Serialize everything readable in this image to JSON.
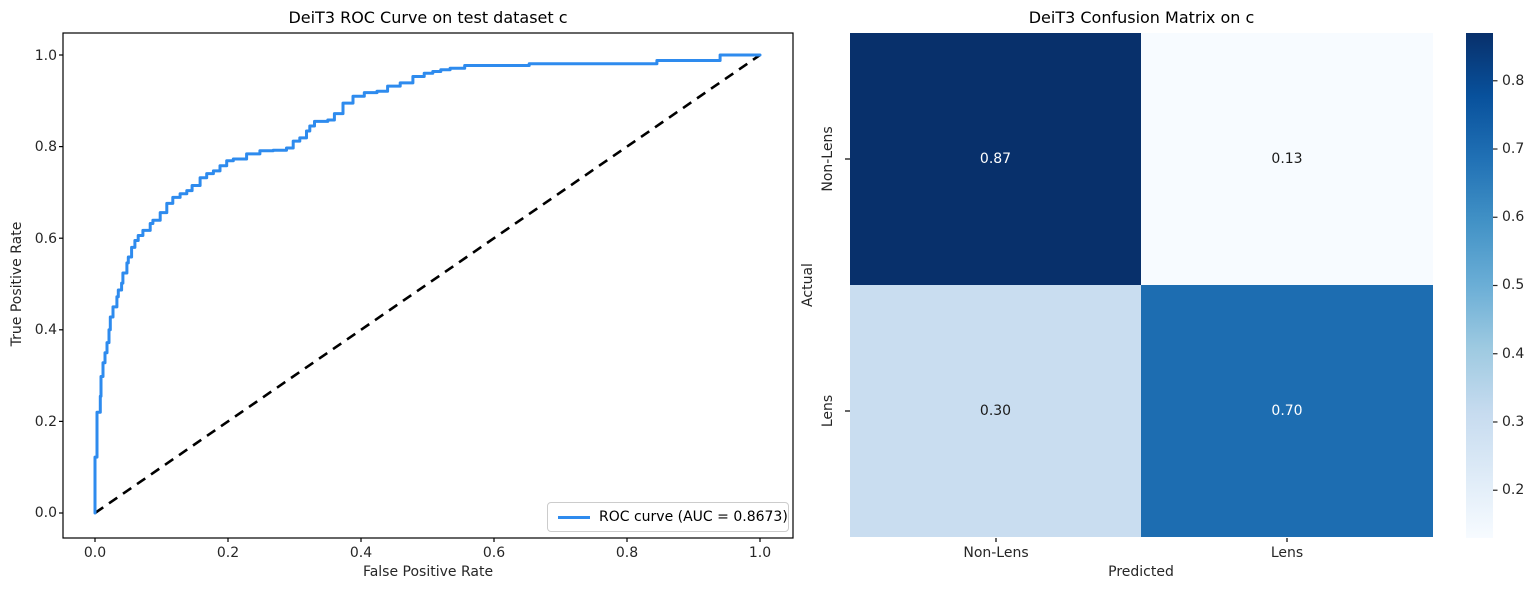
{
  "figure": {
    "background": "#ffffff"
  },
  "roc": {
    "title": "DeiT3 ROC Curve on test dataset c",
    "xlabel": "False Positive Rate",
    "ylabel": "True Positive Rate",
    "x_ticks": [
      "0.0",
      "0.2",
      "0.4",
      "0.6",
      "0.8",
      "1.0"
    ],
    "y_ticks": [
      "0.0",
      "0.2",
      "0.4",
      "0.6",
      "0.8",
      "1.0"
    ],
    "legend_label": "ROC curve (AUC = 0.8673)",
    "auc": "0.8673",
    "curve_color": "#2e8bee",
    "diagonal_color": "#000000"
  },
  "confusion": {
    "title": "DeiT3 Confusion Matrix on c",
    "xlabel": "Predicted",
    "ylabel": "Actual",
    "x_tick_labels": [
      "Non-Lens",
      "Lens"
    ],
    "y_tick_labels": [
      "Non-Lens",
      "Lens"
    ],
    "cells": [
      {
        "row": "Non-Lens",
        "col": "Non-Lens",
        "label": "0.87",
        "color": "#08306b",
        "text_color": "#ffffff"
      },
      {
        "row": "Non-Lens",
        "col": "Lens",
        "label": "0.13",
        "color": "#f7fbff",
        "text_color": "#1a1a1a"
      },
      {
        "row": "Lens",
        "col": "Non-Lens",
        "label": "0.30",
        "color": "#c9ddf0",
        "text_color": "#1a1a1a"
      },
      {
        "row": "Lens",
        "col": "Lens",
        "label": "0.70",
        "color": "#1d6db1",
        "text_color": "#ffffff"
      }
    ],
    "colorbar": {
      "ticks": [
        "0.8",
        "0.7",
        "0.6",
        "0.5",
        "0.4",
        "0.3",
        "0.2"
      ],
      "tick_values": [
        0.8,
        0.7,
        0.6,
        0.5,
        0.4,
        0.3,
        0.2
      ],
      "vmin": 0.13,
      "vmax": 0.87,
      "colormap": "Blues",
      "gradient_top_to_bottom": [
        "#08306b",
        "#08519c",
        "#2171b5",
        "#4292c6",
        "#6baed6",
        "#9ecae1",
        "#c6dbef",
        "#deebf7",
        "#f7fbff"
      ]
    }
  },
  "chart_data": [
    {
      "type": "line",
      "title": "DeiT3 ROC Curve on test dataset c",
      "xlabel": "False Positive Rate",
      "ylabel": "True Positive Rate",
      "xlim": [
        0.0,
        1.0
      ],
      "ylim": [
        0.0,
        1.0
      ],
      "x_tick_values": [
        0.0,
        0.2,
        0.4,
        0.6,
        0.8,
        1.0
      ],
      "y_tick_values": [
        0.0,
        0.2,
        0.4,
        0.6,
        0.8,
        1.0
      ],
      "grid": false,
      "legend_position": "lower right",
      "series": [
        {
          "name": "ROC curve (AUC = 0.8673)",
          "style": "solid-step",
          "color": "#2e8bee",
          "points": [
            [
              0.0,
              0.0
            ],
            [
              0.0,
              0.122
            ],
            [
              0.003,
              0.155
            ],
            [
              0.003,
              0.22
            ],
            [
              0.008,
              0.255
            ],
            [
              0.009,
              0.298
            ],
            [
              0.012,
              0.328
            ],
            [
              0.015,
              0.35
            ],
            [
              0.018,
              0.372
            ],
            [
              0.021,
              0.4
            ],
            [
              0.023,
              0.428
            ],
            [
              0.027,
              0.45
            ],
            [
              0.033,
              0.472
            ],
            [
              0.035,
              0.487
            ],
            [
              0.04,
              0.502
            ],
            [
              0.042,
              0.524
            ],
            [
              0.048,
              0.546
            ],
            [
              0.05,
              0.559
            ],
            [
              0.055,
              0.58
            ],
            [
              0.06,
              0.595
            ],
            [
              0.065,
              0.606
            ],
            [
              0.072,
              0.617
            ],
            [
              0.083,
              0.632
            ],
            [
              0.087,
              0.639
            ],
            [
              0.098,
              0.656
            ],
            [
              0.108,
              0.676
            ],
            [
              0.117,
              0.689
            ],
            [
              0.128,
              0.697
            ],
            [
              0.138,
              0.704
            ],
            [
              0.146,
              0.715
            ],
            [
              0.158,
              0.732
            ],
            [
              0.168,
              0.741
            ],
            [
              0.178,
              0.747
            ],
            [
              0.188,
              0.758
            ],
            [
              0.198,
              0.769
            ],
            [
              0.208,
              0.773
            ],
            [
              0.228,
              0.784
            ],
            [
              0.248,
              0.791
            ],
            [
              0.268,
              0.792
            ],
            [
              0.288,
              0.797
            ],
            [
              0.298,
              0.812
            ],
            [
              0.308,
              0.819
            ],
            [
              0.318,
              0.834
            ],
            [
              0.323,
              0.845
            ],
            [
              0.33,
              0.855
            ],
            [
              0.35,
              0.858
            ],
            [
              0.36,
              0.872
            ],
            [
              0.373,
              0.895
            ],
            [
              0.388,
              0.91
            ],
            [
              0.405,
              0.918
            ],
            [
              0.424,
              0.921
            ],
            [
              0.44,
              0.932
            ],
            [
              0.459,
              0.939
            ],
            [
              0.478,
              0.953
            ],
            [
              0.495,
              0.96
            ],
            [
              0.508,
              0.964
            ],
            [
              0.52,
              0.968
            ],
            [
              0.534,
              0.971
            ],
            [
              0.556,
              0.977
            ],
            [
              0.649,
              0.977
            ],
            [
              0.653,
              0.981
            ],
            [
              0.839,
              0.981
            ],
            [
              0.845,
              0.988
            ],
            [
              0.937,
              0.988
            ],
            [
              0.94,
              1.0
            ],
            [
              1.0,
              1.0
            ]
          ]
        },
        {
          "name": "chance diagonal",
          "style": "dashed",
          "color": "#000000",
          "points": [
            [
              0.0,
              0.0
            ],
            [
              1.0,
              1.0
            ]
          ]
        }
      ]
    },
    {
      "type": "heatmap",
      "title": "DeiT3 Confusion Matrix on c",
      "xlabel": "Predicted",
      "ylabel": "Actual",
      "x_categories": [
        "Non-Lens",
        "Lens"
      ],
      "y_categories": [
        "Non-Lens",
        "Lens"
      ],
      "values": [
        [
          0.87,
          0.13
        ],
        [
          0.3,
          0.7
        ]
      ],
      "colormap": "Blues",
      "colorbar_range": [
        0.13,
        0.87
      ],
      "colorbar_ticks": [
        0.2,
        0.3,
        0.4,
        0.5,
        0.6,
        0.7,
        0.8
      ]
    }
  ]
}
